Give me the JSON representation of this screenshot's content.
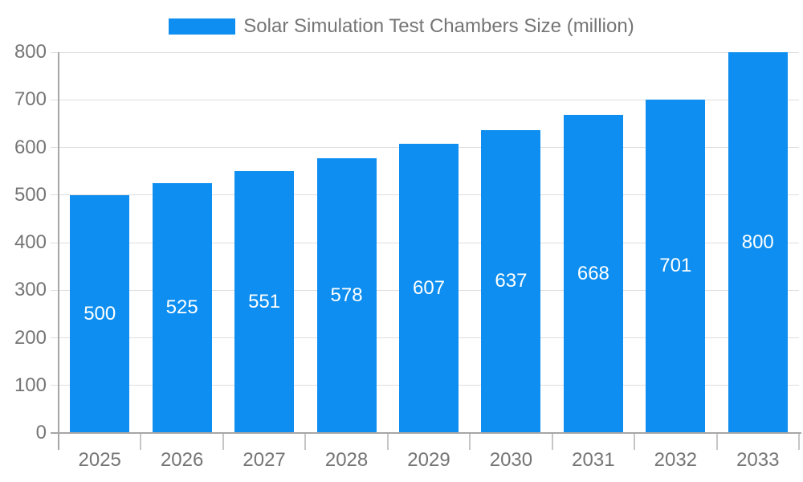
{
  "legend": {
    "label": "Solar Simulation Test Chambers Size (million)",
    "swatch_color": "#0d8ef0"
  },
  "chart_data": {
    "type": "bar",
    "title": "Solar Simulation Test Chambers Size (million)",
    "categories": [
      "2025",
      "2026",
      "2027",
      "2028",
      "2029",
      "2030",
      "2031",
      "2032",
      "2033"
    ],
    "values": [
      500,
      525,
      551,
      578,
      607,
      637,
      668,
      701,
      800
    ],
    "xlabel": "",
    "ylabel": "",
    "ylim": [
      0,
      800
    ],
    "yticks": [
      0,
      100,
      200,
      300,
      400,
      500,
      600,
      700,
      800
    ],
    "grid": true,
    "legend_position": "top",
    "bar_color": "#0d8ef0",
    "value_label_color": "#ffffff",
    "axis_text_color": "#757575",
    "gridline_color": "#dddddd",
    "axis_line_color": "#a6a6a6"
  }
}
